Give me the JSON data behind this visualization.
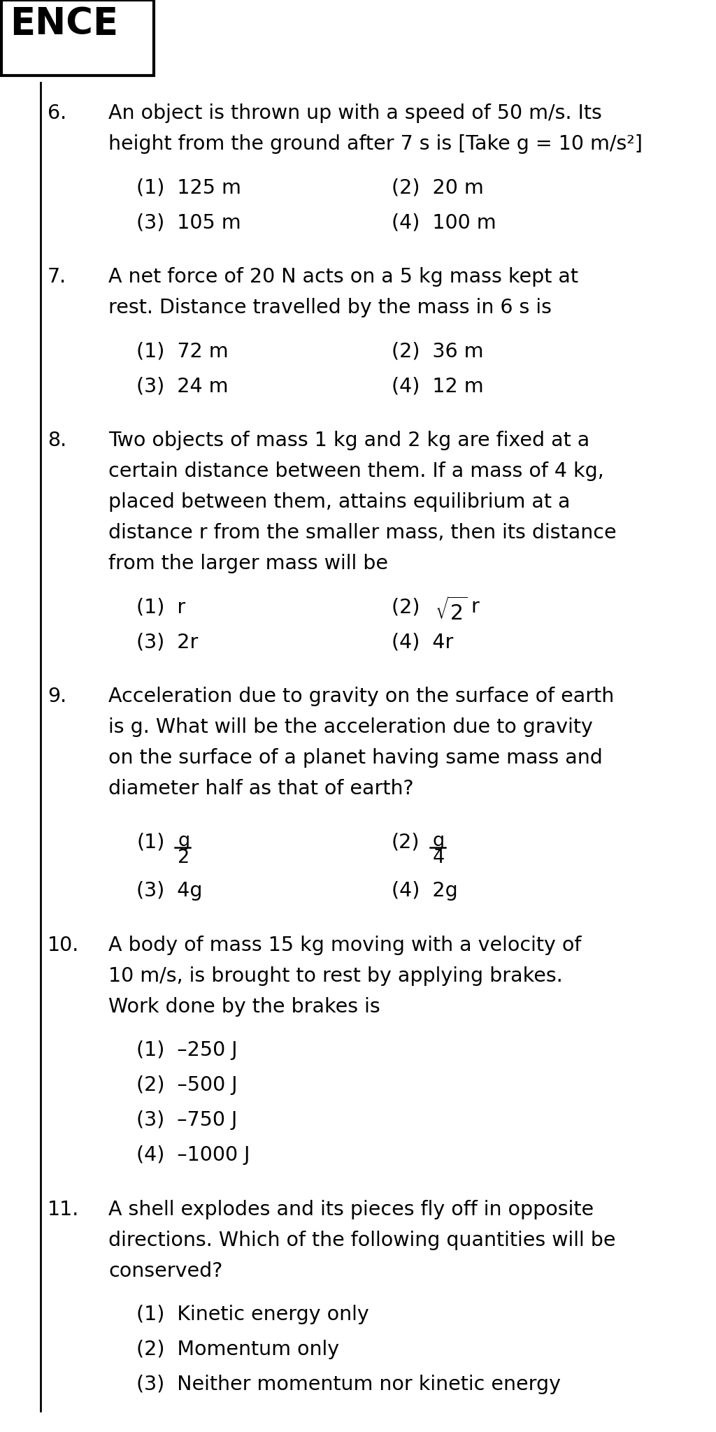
{
  "bg_color": "#ffffff",
  "text_color": "#000000",
  "header_text": "ENCE",
  "q6_text1": "An object is thrown up with a speed of 50 m/s. Its",
  "q6_text2": "height from the ground after 7 s is [Take g = 10 m/s²]",
  "q7_text1": "A net force of 20 N acts on a 5 kg mass kept at",
  "q7_text2": "rest. Distance travelled by the mass in 6 s is",
  "q8_text1": "Two objects of mass 1 kg and 2 kg are fixed at a",
  "q8_text2": "certain distance between them. If a mass of 4 kg,",
  "q8_text3": "placed between them, attains equilibrium at a",
  "q8_text4": "distance r from the smaller mass, then its distance",
  "q8_text5": "from the larger mass will be",
  "q9_text1": "Acceleration due to gravity on the surface of earth",
  "q9_text2": "is g. What will be the acceleration due to gravity",
  "q9_text3": "on the surface of a planet having same mass and",
  "q9_text4": "diameter half as that of earth?",
  "q10_text1": "A body of mass 15 kg moving with a velocity of",
  "q10_text2": "10 m/s, is brought to rest by applying brakes.",
  "q10_text3": "Work done by the brakes is",
  "q11_text1": "A shell explodes and its pieces fly off in opposite",
  "q11_text2": "directions. Which of the following quantities will be",
  "q11_text3": "conserved?"
}
